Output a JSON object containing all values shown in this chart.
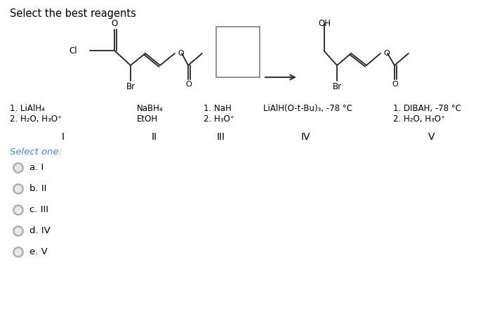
{
  "title": "Select the best reagents",
  "background_color": "#ffffff",
  "text_color": "#000000",
  "blue_color": "#4a86c8",
  "gray_color": "#999999",
  "title_fontsize": 10.5,
  "reagent_fontsize": 8.5,
  "roman_fontsize": 10,
  "select_one_text": "Select one:",
  "option_labels": [
    "a. I",
    "b. II",
    "c. III",
    "d. IV",
    "e. V"
  ],
  "reagent_col1_line1": "1. LiAlH₄",
  "reagent_col1_line2": "2. H₂O, H₃O⁺",
  "reagent_col1_roman": "I",
  "reagent_col2_line1": "NaBH₄",
  "reagent_col2_line2": "EtOH",
  "reagent_col2_roman": "II",
  "reagent_col3_line1": "1. NaH",
  "reagent_col3_line2": "2. H₃O⁺",
  "reagent_col3_roman": "III",
  "reagent_col4_line1": "LiAlH(O-t-Bu)₃, -78 °C",
  "reagent_col4_roman": "IV",
  "reagent_col5_line1": "1. DIBAH, -78 °C",
  "reagent_col5_line2": "2. H₂O, H₃O⁺",
  "reagent_col5_roman": "V"
}
